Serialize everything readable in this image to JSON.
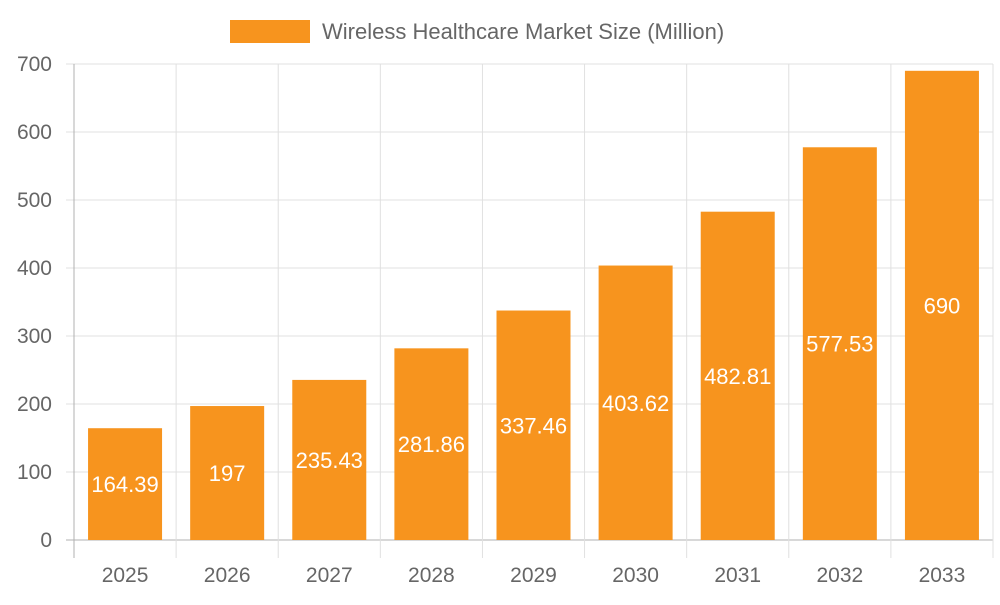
{
  "chart_data": {
    "type": "bar",
    "categories": [
      "2025",
      "2026",
      "2027",
      "2028",
      "2029",
      "2030",
      "2031",
      "2032",
      "2033"
    ],
    "series": [
      {
        "name": "Wireless Healthcare Market Size (Million)",
        "values": [
          164.39,
          197,
          235.43,
          281.86,
          337.46,
          403.62,
          482.81,
          577.53,
          690
        ]
      }
    ],
    "data_labels": [
      "164.39",
      "197",
      "235.43",
      "281.86",
      "337.46",
      "403.62",
      "482.81",
      "577.53",
      "690"
    ],
    "yticks": [
      "0",
      "100",
      "200",
      "300",
      "400",
      "500",
      "600",
      "700"
    ],
    "ylim": [
      0,
      700
    ],
    "xlabel": "",
    "ylabel": "",
    "grid": true,
    "legend_position": "top",
    "colors": {
      "bar": "#F7941E",
      "grid": "#e0e0e0",
      "axis": "#b0b0b0",
      "text": "#666666",
      "label": "#ffffff"
    }
  }
}
